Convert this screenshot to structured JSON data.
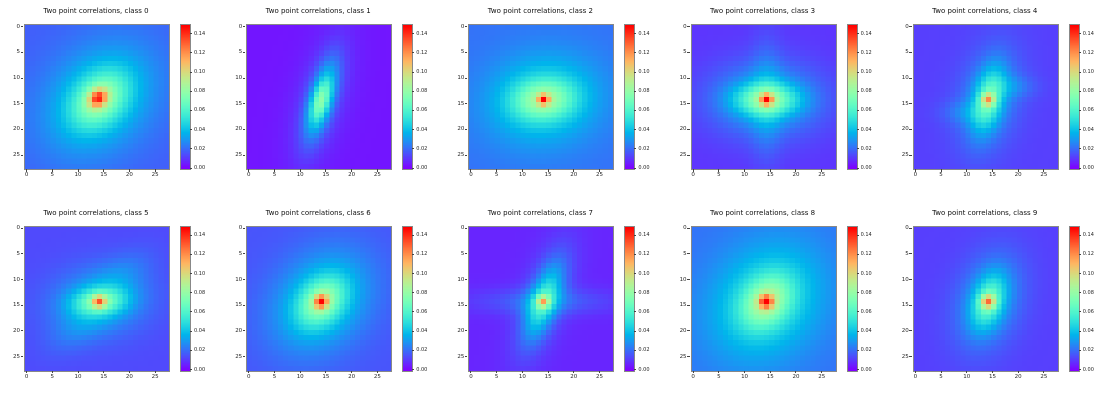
{
  "figure": {
    "background_color": "#ffffff",
    "rows": 2,
    "cols": 5
  },
  "chart_data": {
    "type": "heatmap",
    "colormap": "rainbow",
    "grid_size": 28,
    "vmin": 0.0,
    "vmax": 0.15,
    "x_ticks": [
      0,
      5,
      10,
      15,
      20,
      25
    ],
    "y_ticks": [
      0,
      5,
      10,
      15,
      20,
      25
    ],
    "colorbar_ticks": [
      0.0,
      0.02,
      0.04,
      0.06,
      0.08,
      0.1,
      0.12,
      0.14
    ],
    "colorbar_tick_labels": [
      "0.00",
      "0.02",
      "0.04",
      "0.06",
      "0.08",
      "0.10",
      "0.12",
      "0.14"
    ],
    "legend": "colorbar on right of each subplot, ticks 0.00 to 0.14 step 0.02",
    "subplots": [
      {
        "title": "Two point correlations, class 0",
        "class": 0,
        "peak_value": 0.148,
        "peak_location": [
          14,
          14
        ],
        "background_level": 0.018,
        "shape": "broad diagonal blob at 45 deg, red 2px core",
        "components": [
          [
            0.028,
            14,
            14,
            8.5,
            6.5,
            -45
          ],
          [
            0.042,
            14,
            14,
            4.2,
            3.0,
            -45
          ],
          [
            0.06,
            13.7,
            13.7,
            1.3,
            1.1,
            -45
          ]
        ]
      },
      {
        "title": "Two point correlations, class 1",
        "class": 1,
        "peak_value": 0.08,
        "peak_location": [
          14,
          14
        ],
        "background_level": 0.004,
        "shape": "narrow steep diagonal streak, green-yellow peak only, dark violet background",
        "components": [
          [
            0.01,
            14,
            14,
            9.0,
            3.5,
            -74
          ],
          [
            0.038,
            14,
            14,
            5.5,
            1.7,
            -74
          ],
          [
            0.028,
            13.8,
            14.3,
            2.8,
            1.1,
            -74
          ]
        ]
      },
      {
        "title": "Two point correlations, class 2",
        "class": 2,
        "peak_value": 0.152,
        "peak_location": [
          14,
          14
        ],
        "background_level": 0.022,
        "shape": "nearly isotropic blob slightly wider horizontally, small dark-red center dot",
        "components": [
          [
            0.028,
            14,
            14,
            7.5,
            6.0,
            -10
          ],
          [
            0.04,
            14,
            14,
            4.0,
            2.6,
            -5
          ],
          [
            0.062,
            14,
            14,
            0.75,
            0.7,
            0
          ]
        ]
      },
      {
        "title": "Two point correlations, class 3",
        "class": 3,
        "peak_value": 0.155,
        "peak_location": [
          14,
          14
        ],
        "background_level": 0.01,
        "shape": "horizontally elongated blob with faint vertical arm (cross), dark-red center dot",
        "components": [
          [
            0.026,
            14,
            14,
            7.5,
            5.0,
            0
          ],
          [
            0.012,
            14,
            14,
            8.0,
            2.0,
            90
          ],
          [
            0.045,
            14,
            14,
            4.3,
            2.1,
            0
          ],
          [
            0.062,
            14,
            14,
            0.8,
            0.75,
            0
          ]
        ]
      },
      {
        "title": "Two point correlations, class 4",
        "class": 4,
        "peak_value": 0.13,
        "peak_location": [
          14,
          14
        ],
        "background_level": 0.012,
        "shape": "steep tilted vertical streak with faint offset horizontal lobes, orange-red core",
        "components": [
          [
            0.018,
            14,
            14,
            7.0,
            4.0,
            -77
          ],
          [
            0.035,
            14,
            14,
            4.5,
            1.9,
            -77
          ],
          [
            0.01,
            10,
            16.5,
            3.5,
            1.6,
            0
          ],
          [
            0.01,
            18,
            11.5,
            3.5,
            1.6,
            0
          ],
          [
            0.055,
            13.9,
            14,
            0.95,
            0.9,
            0
          ]
        ]
      },
      {
        "title": "Two point correlations, class 5",
        "class": 5,
        "peak_value": 0.129,
        "peak_location": [
          14,
          14
        ],
        "background_level": 0.014,
        "shape": "horizontal ellipse with faint diagonal haze to upper-right and lower-left, orange-red core",
        "components": [
          [
            0.022,
            14,
            14,
            6.5,
            4.5,
            -8
          ],
          [
            0.038,
            14,
            14,
            3.6,
            1.8,
            -5
          ],
          [
            0.008,
            18,
            9,
            5.0,
            2.5,
            -35
          ],
          [
            0.008,
            10,
            19,
            5.0,
            2.5,
            -35
          ],
          [
            0.055,
            13.9,
            14,
            0.9,
            0.85,
            0
          ]
        ]
      },
      {
        "title": "Two point correlations, class 6",
        "class": 6,
        "peak_value": 0.15,
        "peak_location": [
          14,
          14
        ],
        "background_level": 0.016,
        "shape": "diagonal blob at 45 deg with broad cyan halo, red core",
        "components": [
          [
            0.03,
            14,
            14,
            7.5,
            5.8,
            -48
          ],
          [
            0.042,
            14,
            14,
            3.6,
            2.6,
            -48
          ],
          [
            0.062,
            13.9,
            14,
            0.95,
            0.9,
            -45
          ]
        ]
      },
      {
        "title": "Two point correlations, class 7",
        "class": 7,
        "peak_value": 0.119,
        "peak_location": [
          14,
          14
        ],
        "background_level": 0.007,
        "shape": "strong steep diagonal streak plus faint horizontal arm, orange core, dark violet background",
        "components": [
          [
            0.012,
            14,
            14,
            9.5,
            1.8,
            0
          ],
          [
            0.015,
            14,
            14,
            8.0,
            3.0,
            -70
          ],
          [
            0.035,
            14,
            14,
            5.0,
            1.8,
            -70
          ],
          [
            0.05,
            13.9,
            14,
            0.85,
            0.8,
            0
          ]
        ]
      },
      {
        "title": "Two point correlations, class 8",
        "class": 8,
        "peak_value": 0.156,
        "peak_location": [
          14,
          14
        ],
        "background_level": 0.022,
        "shape": "broad slightly diagonal blob with wide cyan halo, red core dot",
        "components": [
          [
            0.03,
            14,
            14,
            8.5,
            7.0,
            -50
          ],
          [
            0.042,
            14,
            14,
            3.8,
            2.9,
            -50
          ],
          [
            0.062,
            13.9,
            14,
            0.95,
            0.9,
            0
          ]
        ]
      },
      {
        "title": "Two point correlations, class 9",
        "class": 9,
        "peak_value": 0.13,
        "peak_location": [
          14,
          14
        ],
        "background_level": 0.012,
        "shape": "tilted vertical blob, orange-red core",
        "components": [
          [
            0.022,
            14,
            14,
            6.5,
            4.2,
            -72
          ],
          [
            0.038,
            14,
            14,
            3.6,
            2.0,
            -72
          ],
          [
            0.058,
            13.9,
            14,
            0.95,
            0.9,
            0
          ]
        ]
      }
    ]
  }
}
